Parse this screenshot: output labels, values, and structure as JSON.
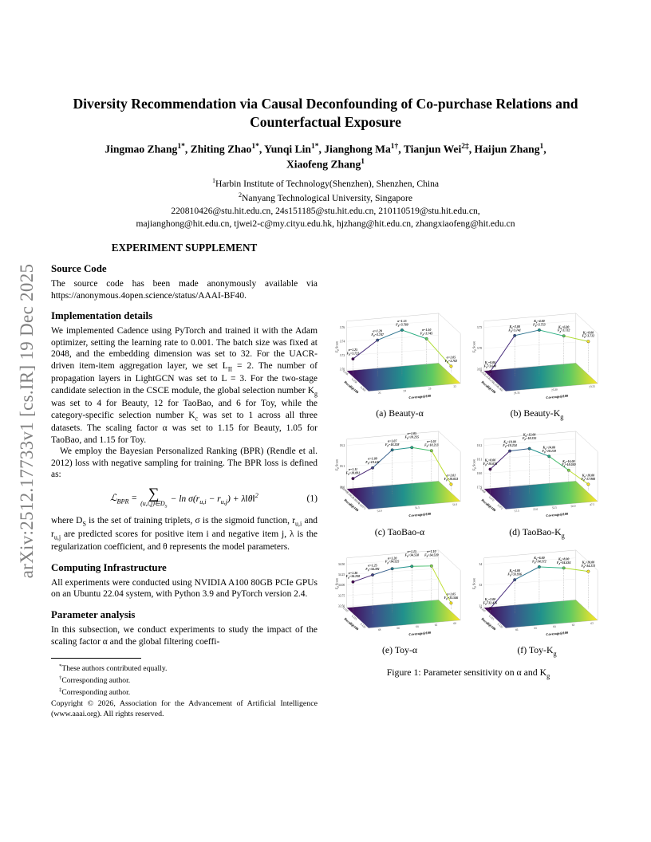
{
  "arxiv_watermark": "arXiv:2512.17733v1  [cs.IR]  19 Dec 2025",
  "header": {
    "title": "Diversity Recommendation via Causal Deconfounding of Co-purchase Relations and Counterfactual Exposure",
    "authors_line1": "Jingmao Zhang^{1*}, Zhiting Zhao^{1*}, Yunqi Lin^{1*}, Jianghong Ma^{1†}, Tianjun Wei^{2‡}, Haijun Zhang^{1},",
    "authors_line2": "Xiaofeng Zhang^{1}",
    "affiliation1": "^{1}Harbin Institute of Technology(Shenzhen), Shenzhen, China",
    "affiliation2": "^{2}Nanyang Technological University, Singapore",
    "emails_line1": "220810426@stu.hit.edu.cn, 24s151185@stu.hit.edu.cn, 210110519@stu.hit.edu.cn,",
    "emails_line2": "majianghong@hit.edu.cn, tjwei2-c@my.cityu.edu.hk, hjzhang@hit.edu.cn, zhangxiaofeng@hit.edu.cn"
  },
  "left_column": {
    "supplement_heading": "EXPERIMENT SUPPLEMENT",
    "source_code": {
      "heading": "Source Code",
      "body": "The source code has been made anonymously available via https://anonymous.4open.science/status/AAAI-BF40."
    },
    "implementation": {
      "heading": "Implementation details",
      "body": "We implemented Cadence using PyTorch and trained it with the Adam optimizer, setting the learning rate to 0.001. The batch size was fixed at 2048, and the embedding dimension was set to 32. For the UACR-driven item-item aggregation layer, we set L_{II} = 2. The number of propagation layers in LightGCN was set to L = 3. For the two-stage candidate selection in the CSCE module, the global selection number K_{g} was set to 4 for Beauty, 12 for TaoBao, and 6 for Toy, while the category-specific selection number K_{c} was set to 1 across all three datasets. The scaling factor α was set to 1.15 for Beauty, 1.05 for TaoBao, and 1.15 for Toy.",
      "body2": "We employ the Bayesian Personalized Ranking (BPR) (Rendle et al. 2012) loss with negative sampling for training. The BPR loss is defined as:",
      "body3": "where D_{S} is the set of training triplets, σ is the sigmoid function, r_{u,i} and r_{u,j} are predicted scores for positive item i and negative item j, λ is the regularization coefficient, and θ represents the model parameters."
    },
    "computing": {
      "heading": "Computing Infrastructure",
      "body": "All experiments were conducted using NVIDIA A100 80GB PCIe GPUs on an Ubuntu 22.04 system, with Python 3.9 and PyTorch version 2.4."
    },
    "parameter": {
      "heading": "Parameter analysis",
      "body": "In this subsection, we conduct experiments to study the impact of the scaling factor α and the global filtering coeffi-"
    }
  },
  "equation": {
    "lhs": "ℒ_{BPR} =",
    "sum_symbol": "∑",
    "sum_subscript": "(u,i,j)∈D_{S}",
    "rhs": "− ln σ(r_{u,i} − r_{u,j}) + λ‖θ‖^{2}",
    "number": "(1)"
  },
  "footnotes": {
    "item1": "^{*}These authors contributed equally.",
    "item2": "^{†}Corresponding author.",
    "item3": "^{‡}Corresponding author.",
    "copyright": "Copyright © 2026, Association for the Advancement of Artificial Intelligence (www.aaai.org). All rights reserved."
  },
  "figure": {
    "caption": "Figure 1: Parameter sensitivity on α and K_{g}"
  },
  "style": {
    "viridis": [
      "#440154",
      "#472d7b",
      "#3b528b",
      "#2c728e",
      "#21918c",
      "#28ae80",
      "#5ec962",
      "#addc30",
      "#fde725"
    ],
    "surface_stops": [
      "#440154",
      "#3b528b",
      "#21918c",
      "#5ec962",
      "#fde725"
    ],
    "annotation_color": "#111111",
    "wire_color": "#c9c9c9"
  },
  "chart_data": [
    {
      "type": "line3d",
      "label": "(a) Beauty-α",
      "zlabel": "F_β Score",
      "xlabel": "Coverage@100",
      "ylabel": "Recall@100",
      "z_ticks": [
        "3.70",
        "3.72",
        "3.74",
        "3.76"
      ],
      "y_ticks": [
        "0.256",
        "0.258",
        "0.260"
      ],
      "x_ticks": [
        "25",
        "24",
        "23",
        "22"
      ],
      "points": [
        {
          "label": "α=1.25",
          "value": "F_β=3.721",
          "f": 3.721
        },
        {
          "label": "α=1.20",
          "value": "F_β=3.747",
          "f": 3.747
        },
        {
          "label": "α=1.15",
          "value": "F_β=3.760",
          "f": 3.76
        },
        {
          "label": "α=1.10",
          "value": "F_β=3.745",
          "f": 3.745
        },
        {
          "label": "α=1.05",
          "value": "F_β=3.702",
          "f": 3.702
        }
      ]
    },
    {
      "type": "line3d",
      "label": "(b) Beauty-K_g",
      "zlabel": "F_β Score",
      "xlabel": "Coverage@100",
      "ylabel": "Recall@100",
      "z_ticks": [
        "3.65",
        "3.70",
        "3.75"
      ],
      "y_ticks": [
        "0.252",
        "0.254",
        "0.256",
        "0.258",
        "0.260"
      ],
      "x_ticks": [
        "23.35",
        "23.30",
        "23.25"
      ],
      "points": [
        {
          "label": "K_g=0.00",
          "value": "F_β=3.640",
          "f": 3.64
        },
        {
          "label": "K_g=2.00",
          "value": "F_β=3.741",
          "f": 3.741
        },
        {
          "label": "K_g=4.00",
          "value": "F_β=3.753",
          "f": 3.753
        },
        {
          "label": "K_g=6.00",
          "value": "F_β=3.732",
          "f": 3.732
        },
        {
          "label": "K_g=8.00",
          "value": "F_β=3.712",
          "f": 3.712
        }
      ]
    },
    {
      "type": "line3d",
      "label": "(c) TaoBao-α",
      "zlabel": "F_β Score",
      "xlabel": "Coverage@100",
      "ylabel": "Recall@100",
      "z_ticks": [
        "18.0",
        "18.1",
        "18.2"
      ],
      "y_ticks": [
        "0.00000",
        "0.00025",
        "0.00050",
        "0.00075"
      ],
      "x_ticks": [
        "52.0",
        "51.5",
        "51.0"
      ],
      "points": [
        {
          "label": "α=1.11",
          "value": "F_β=18.091",
          "f": 18.091
        },
        {
          "label": "α=1.09",
          "value": "F_β=18.141",
          "f": 18.141
        },
        {
          "label": "α=1.07",
          "value": "F_β=18.228",
          "f": 18.228
        },
        {
          "label": "α=1.05",
          "value": "F_β=18.235",
          "f": 18.235
        },
        {
          "label": "α=1.03",
          "value": "F_β=18.213",
          "f": 18.213
        },
        {
          "label": "α=1.01",
          "value": "F_β=18.033",
          "f": 18.033
        }
      ]
    },
    {
      "type": "line3d",
      "label": "(d) TaoBao-K_g",
      "zlabel": "F_β Score",
      "xlabel": "Coverage@100",
      "ylabel": "Recall@100",
      "z_ticks": [
        "17.9",
        "18.0",
        "18.1",
        "18.2"
      ],
      "y_ticks": [
        "0.068",
        "0.070",
        "0.072"
      ],
      "x_ticks": [
        "57.5",
        "55.0",
        "52.5",
        "50.0",
        "47.5"
      ],
      "points": [
        {
          "label": "K_g=8.00",
          "value": "F_β=18.076",
          "f": 18.076
        },
        {
          "label": "K_g=10.00",
          "value": "F_β=18.224",
          "f": 18.224
        },
        {
          "label": "K_g=12.00",
          "value": "F_β=18.235",
          "f": 18.235
        },
        {
          "label": "K_g=14.00",
          "value": "F_β=18.159",
          "f": 18.159
        },
        {
          "label": "K_g=16.00",
          "value": "F_β=18.030",
          "f": 18.03
        },
        {
          "label": "K_g=18.00",
          "value": "F_β=17.900",
          "f": 17.9
        }
      ]
    },
    {
      "type": "line3d",
      "label": "(e) Toy-α",
      "zlabel": "F_β Score",
      "xlabel": "Coverage@100",
      "ylabel": "Recall@100",
      "z_ticks": [
        "33.50",
        "33.75",
        "34.00",
        "34.25",
        "34.50"
      ],
      "y_ticks": [
        "0.110",
        "0.115",
        "0.120"
      ],
      "x_ticks": [
        "68",
        "66",
        "64",
        "62",
        "60"
      ],
      "points": [
        {
          "label": "α=1.30",
          "value": "F_β=34.238",
          "f": 34.238
        },
        {
          "label": "α=1.25",
          "value": "F_β=34.391",
          "f": 34.391
        },
        {
          "label": "α=1.20",
          "value": "F_β=34.525",
          "f": 34.525
        },
        {
          "label": "α=1.15",
          "value": "F_β=34.558",
          "f": 34.558
        },
        {
          "label": "α=1.10",
          "value": "F_β=34.539",
          "f": 34.539
        },
        {
          "label": "α=1.05",
          "value": "F_β=33.546",
          "f": 33.546
        }
      ]
    },
    {
      "type": "line3d",
      "label": "(f) Toy-K_g",
      "zlabel": "F_β Score",
      "xlabel": "Coverage@100",
      "ylabel": "Recall@100",
      "z_ticks": [
        "32",
        "33",
        "34"
      ],
      "y_ticks": [
        "0.110",
        "0.115",
        "0.120"
      ],
      "x_ticks": [
        "66",
        "65",
        "64",
        "63",
        "62"
      ],
      "points": [
        {
          "label": "K_g=2.00",
          "value": "F_β=32.426",
          "f": 32.426
        },
        {
          "label": "K_g=4.00",
          "value": "F_β=33.936",
          "f": 33.936
        },
        {
          "label": "K_g=6.00",
          "value": "F_β=34.572",
          "f": 34.572
        },
        {
          "label": "K_g=8.00",
          "value": "F_β=34.434",
          "f": 34.434
        },
        {
          "label": "K_g=10.00",
          "value": "F_β=34.172",
          "f": 34.172
        }
      ]
    }
  ]
}
